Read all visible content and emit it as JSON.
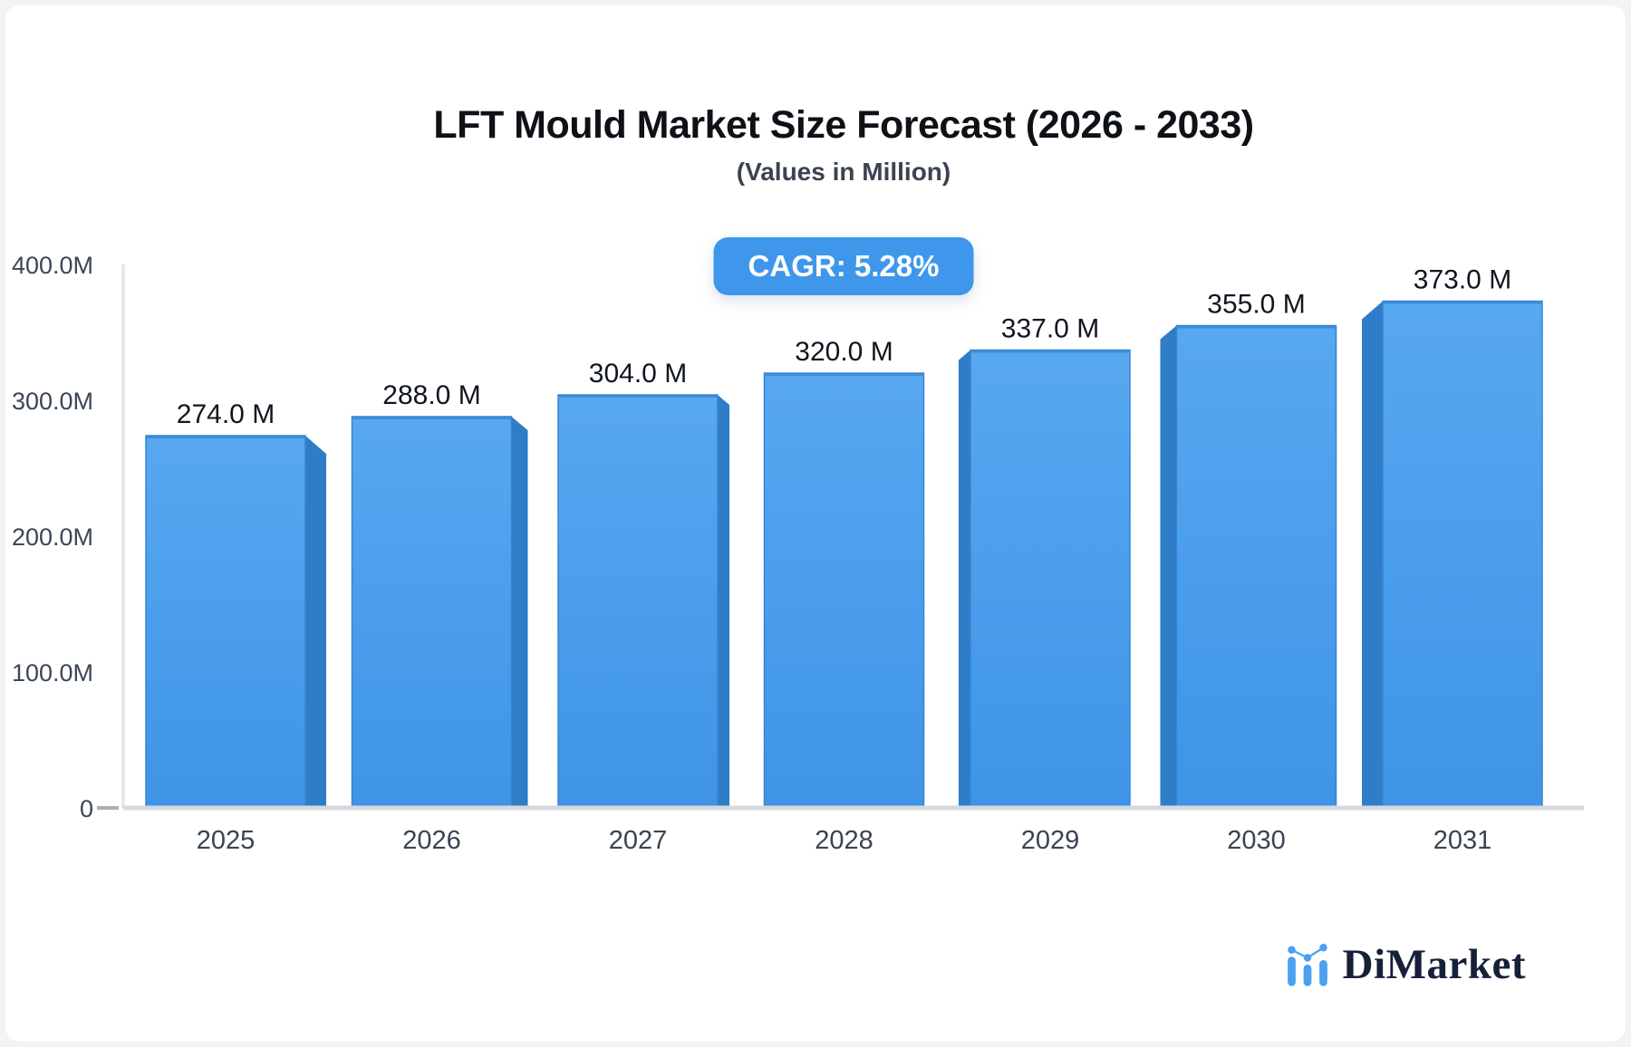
{
  "page": {
    "background": "#f1f3f5",
    "card_background": "#ffffff"
  },
  "header": {
    "title": "LFT Mould Market Size Forecast (2026 - 2033)",
    "subtitle": "(Values in Million)",
    "cagr_label": "CAGR: 5.28%",
    "badge_color": "#3e97ea"
  },
  "chart_data": {
    "type": "bar",
    "title": "LFT Mould Market Size Forecast (2026 - 2033)",
    "subtitle": "(Values in Million)",
    "categories": [
      "2025",
      "2026",
      "2027",
      "2028",
      "2029",
      "2030",
      "2031"
    ],
    "values": [
      274,
      288,
      304,
      320,
      337,
      355,
      373
    ],
    "value_labels": [
      "274.0 M",
      "288.0 M",
      "304.0 M",
      "320.0 M",
      "337.0 M",
      "355.0 M",
      "373.0 M"
    ],
    "unit": "Million",
    "xlabel": "",
    "ylabel": "",
    "ylim": [
      0,
      400
    ],
    "y_ticks": [
      {
        "value": 0,
        "label": "0"
      },
      {
        "value": 100,
        "label": "100.0M"
      },
      {
        "value": 200,
        "label": "200.0M"
      },
      {
        "value": 300,
        "label": "300.0M"
      },
      {
        "value": 400,
        "label": "400.0M"
      }
    ],
    "grid": false,
    "legend": null,
    "bar_style": "3d-perspective-center",
    "colors": {
      "face_top": "#57a8f0",
      "face_bottom": "#3f94e7",
      "face_edge": "#3585d2",
      "side": "#2f7dc6",
      "axis_line": "#e6e9ec",
      "baseline": "#d5d9dd",
      "tick_dash": "#a9b0b7",
      "tick_label": "#3b4754",
      "value_label": "#10161f",
      "year_label": "#3a4450"
    }
  },
  "footer": {
    "brand": "DiMarket",
    "brand_color": "#162039",
    "icon_color": "#4ba0f2"
  }
}
